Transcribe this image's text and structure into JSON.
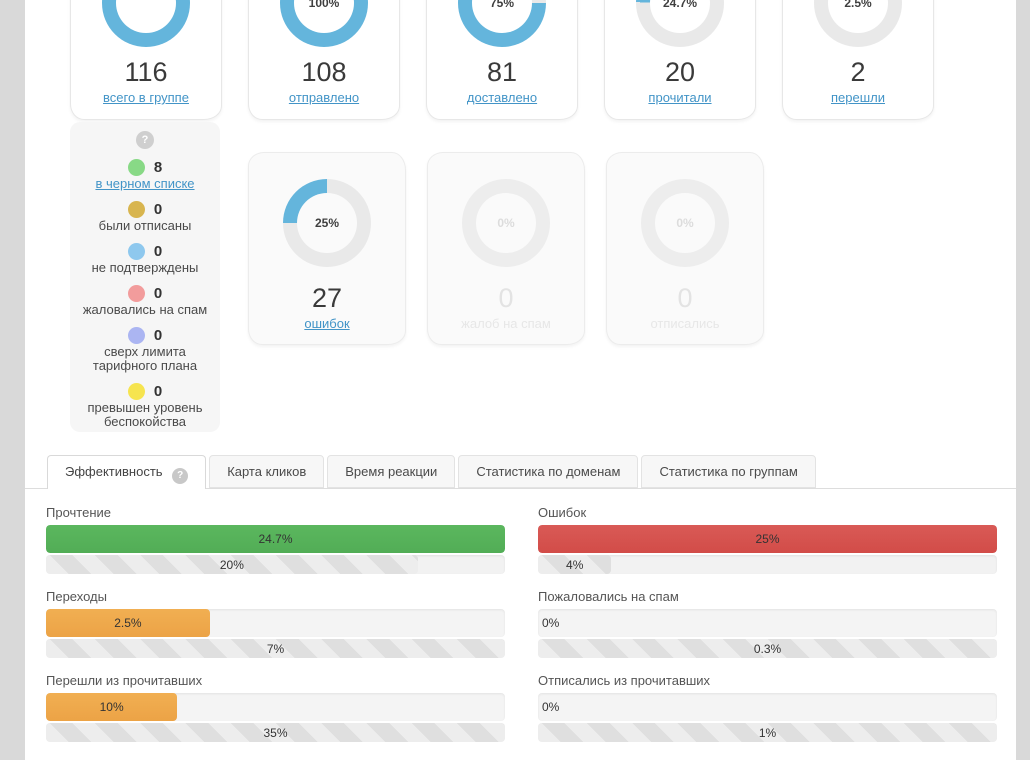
{
  "colors": {
    "page_bg": "#d9d9d9",
    "content_bg": "#ffffff",
    "donut_fill": "#64b5dc",
    "donut_track": "#e9e9e9",
    "donut_track_muted": "#ededed",
    "green": "c-green",
    "red": "c-red",
    "orange": "c-orange",
    "link": "#4294c7"
  },
  "icons": {
    "help": "?"
  },
  "top_stats": [
    {
      "name": "card-total-in-group",
      "value": "116",
      "label": "всего в группе",
      "percent": "",
      "pct": 100,
      "muted": false
    },
    {
      "name": "card-sent",
      "value": "108",
      "label": "отправлено",
      "percent": "100%",
      "pct": 100,
      "muted": false
    },
    {
      "name": "card-delivered",
      "value": "81",
      "label": "доставлено",
      "percent": "75%",
      "pct": 75,
      "muted": false
    },
    {
      "name": "card-read",
      "value": "20",
      "label": "прочитали",
      "percent": "24.7%",
      "pct": 24.7,
      "muted": false
    },
    {
      "name": "card-clicked",
      "value": "2",
      "label": "перешли",
      "percent": "2.5%",
      "pct": 2.5,
      "muted": false
    }
  ],
  "second_stats": [
    {
      "name": "card-errors",
      "value": "27",
      "label": "ошибок",
      "percent": "25%",
      "pct": 25,
      "muted": false
    },
    {
      "name": "card-spam-complaints",
      "value": "0",
      "label": "жалоб на спам",
      "percent": "0%",
      "pct": 0,
      "muted": true
    },
    {
      "name": "card-unsubscribed",
      "value": "0",
      "label": "отписались",
      "percent": "0%",
      "pct": 0,
      "muted": true
    }
  ],
  "legend": {
    "items": [
      {
        "name": "legend-blacklisted",
        "color": "#88d986",
        "count": "8",
        "label": "в черном списке",
        "link": true
      },
      {
        "name": "legend-were-unsubscribed",
        "color": "#d8b54f",
        "count": "0",
        "label": "были отписаны",
        "link": false
      },
      {
        "name": "legend-not-confirmed",
        "color": "#8ec8ee",
        "count": "0",
        "label": "не подтверждены",
        "link": false
      },
      {
        "name": "legend-spam-complained",
        "color": "#f29c9c",
        "count": "0",
        "label": "жаловались на спам",
        "link": false
      },
      {
        "name": "legend-over-plan-limit",
        "color": "#abb5f2",
        "count": "0",
        "label": "сверх лимита тарифного плана",
        "link": false
      },
      {
        "name": "legend-anxiety-exceeded",
        "color": "#f6e44f",
        "count": "0",
        "label": "превышен уровень беспокойства",
        "link": false
      }
    ]
  },
  "tabs": [
    {
      "name": "tab-effectiveness",
      "label": "Эффективность",
      "active": true,
      "has_help": true
    },
    {
      "name": "tab-click-map",
      "label": "Карта кликов",
      "active": false,
      "has_help": false
    },
    {
      "name": "tab-reaction-time",
      "label": "Время реакции",
      "active": false,
      "has_help": false
    },
    {
      "name": "tab-domain-stats",
      "label": "Статистика по доменам",
      "active": false,
      "has_help": false
    },
    {
      "name": "tab-group-stats",
      "label": "Статистика по группам",
      "active": false,
      "has_help": false
    }
  ],
  "metrics": {
    "left": [
      {
        "name": "metric-read-rate",
        "title": "Прочтение",
        "value": 24.7,
        "value_label": "24.7%",
        "avg": 20,
        "avg_label": "20%",
        "color": "green"
      },
      {
        "name": "metric-click-rate",
        "title": "Переходы",
        "value": 2.5,
        "value_label": "2.5%",
        "avg": 7,
        "avg_label": "7%",
        "color": "orange"
      },
      {
        "name": "metric-click-from-read",
        "title": "Перешли из прочитавших",
        "value": 10,
        "value_label": "10%",
        "avg": 35,
        "avg_label": "35%",
        "color": "orange"
      }
    ],
    "right": [
      {
        "name": "metric-error-rate",
        "title": "Ошибок",
        "value": 25,
        "value_label": "25%",
        "avg": 4,
        "avg_label": "4%",
        "color": "red"
      },
      {
        "name": "metric-spam-rate",
        "title": "Пожаловались на спам",
        "value": 0,
        "value_label": "0%",
        "avg": 0.3,
        "avg_label": "0.3%",
        "color": "none"
      },
      {
        "name": "metric-unsub-from-read",
        "title": "Отписались из прочитавших",
        "value": 0,
        "value_label": "0%",
        "avg": 1,
        "avg_label": "1%",
        "color": "none"
      }
    ]
  }
}
